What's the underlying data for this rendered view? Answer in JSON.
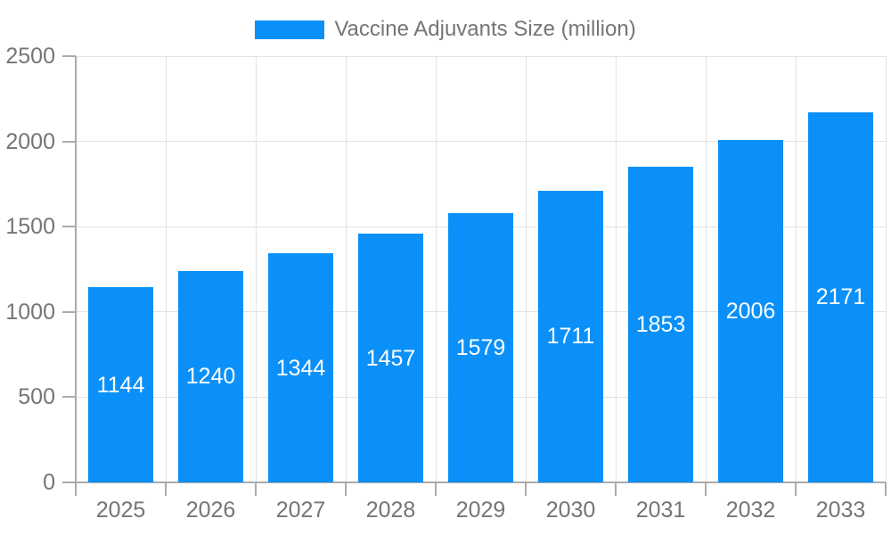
{
  "chart_data": {
    "type": "bar",
    "title": "Vaccine Adjuvants Size (million)",
    "legend": "Vaccine Adjuvants Size (million)",
    "legend_position": "top",
    "categories": [
      "2025",
      "2026",
      "2027",
      "2028",
      "2029",
      "2030",
      "2031",
      "2032",
      "2033"
    ],
    "values": [
      1144,
      1240,
      1344,
      1457,
      1579,
      1711,
      1853,
      2006,
      2171
    ],
    "xlabel": "",
    "ylabel": "",
    "ylim": [
      0,
      2500
    ],
    "yticks": [
      0,
      500,
      1000,
      1500,
      2000,
      2500
    ],
    "grid": true,
    "value_labels": "inside-center",
    "colors": {
      "bar": "#0a90f8",
      "bar_value_text": "#ffffff",
      "axis_text": "#757575",
      "legend_text": "#757575",
      "gridline": "#e2e2e2",
      "axis_line": "#ababab",
      "background": "#ffffff"
    }
  }
}
